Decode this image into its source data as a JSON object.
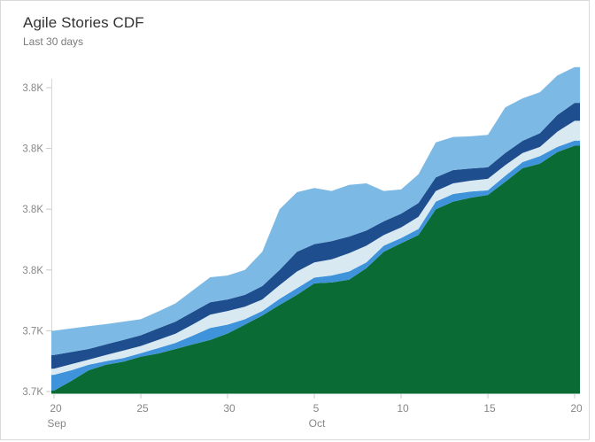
{
  "card": {
    "title": "Agile Stories CDF",
    "subtitle": "Last 30 days"
  },
  "chart_data": {
    "type": "area",
    "stacked": true,
    "title": "Agile Stories CDF",
    "subtitle": "Last 30 days",
    "grid": false,
    "legend_position": "none",
    "ylim": [
      3719,
      3828
    ],
    "xlabel": "",
    "ylabel": "",
    "dates": [
      "Sep 20",
      "Sep 21",
      "Sep 22",
      "Sep 23",
      "Sep 24",
      "Sep 25",
      "Sep 26",
      "Sep 27",
      "Sep 28",
      "Sep 29",
      "Sep 30",
      "Oct 1",
      "Oct 2",
      "Oct 3",
      "Oct 4",
      "Oct 5",
      "Oct 6",
      "Oct 7",
      "Oct 8",
      "Oct 9",
      "Oct 10",
      "Oct 11",
      "Oct 12",
      "Oct 13",
      "Oct 14",
      "Oct 15",
      "Oct 16",
      "Oct 17",
      "Oct 18",
      "Oct 19",
      "Oct 20"
    ],
    "values_are": "cumulative_upper_boundary_of_each_stacked_band_in_stories",
    "bands": [
      {
        "name": "dark-green",
        "color": "#0b6b34",
        "cumulative_top": [
          3720.3,
          3723.5,
          3727.0,
          3728.8,
          3729.8,
          3731.5,
          3732.5,
          3734.0,
          3735.5,
          3737.0,
          3739.1,
          3742.0,
          3745.0,
          3748.5,
          3751.8,
          3755.6,
          3755.9,
          3756.8,
          3760.6,
          3766.0,
          3768.8,
          3771.5,
          3780.0,
          3782.5,
          3783.8,
          3784.7,
          3789.0,
          3793.5,
          3795.0,
          3798.8,
          3800.9
        ]
      },
      {
        "name": "medium-blue",
        "color": "#3e93da",
        "cumulative_top": [
          3725.5,
          3727.0,
          3728.8,
          3730.0,
          3731.0,
          3732.6,
          3734.3,
          3736.0,
          3738.4,
          3740.9,
          3742.0,
          3743.8,
          3746.5,
          3750.5,
          3754.0,
          3757.5,
          3758.2,
          3759.5,
          3762.5,
          3768.0,
          3770.5,
          3773.5,
          3782.5,
          3785.0,
          3785.8,
          3786.2,
          3791.0,
          3795.5,
          3797.5,
          3800.5,
          3802.6
        ]
      },
      {
        "name": "pale-blue",
        "color": "#d8e9f2",
        "cumulative_top": [
          3727.5,
          3729.0,
          3730.5,
          3732.0,
          3733.5,
          3735.0,
          3737.0,
          3739.0,
          3742.1,
          3745.3,
          3746.5,
          3747.9,
          3750.3,
          3755.0,
          3759.5,
          3762.5,
          3763.5,
          3765.5,
          3768.0,
          3771.5,
          3774.0,
          3777.5,
          3786.0,
          3788.5,
          3789.4,
          3790.0,
          3794.5,
          3798.5,
          3800.5,
          3805.5,
          3809.1
        ]
      },
      {
        "name": "dark-navy",
        "color": "#1f4e8e",
        "cumulative_top": [
          3732.0,
          3733.0,
          3734.0,
          3735.5,
          3737.0,
          3738.5,
          3740.8,
          3743.0,
          3746.2,
          3749.4,
          3750.3,
          3751.8,
          3754.7,
          3760.0,
          3766.0,
          3768.5,
          3769.5,
          3771.0,
          3773.0,
          3776.0,
          3778.5,
          3782.0,
          3790.5,
          3792.9,
          3793.4,
          3793.8,
          3798.5,
          3802.5,
          3805.0,
          3811.0,
          3815.0
        ]
      },
      {
        "name": "light-blue",
        "color": "#7db9e5",
        "cumulative_top": [
          3740.0,
          3740.8,
          3741.5,
          3742.2,
          3743.0,
          3743.8,
          3746.3,
          3749.0,
          3753.3,
          3757.6,
          3758.2,
          3760.0,
          3766.0,
          3780.0,
          3785.6,
          3787.0,
          3786.0,
          3788.0,
          3788.5,
          3786.0,
          3786.5,
          3791.5,
          3802.0,
          3803.8,
          3804.0,
          3804.5,
          3813.5,
          3816.5,
          3818.5,
          3824.0,
          3826.8
        ]
      }
    ],
    "y_axis": {
      "ticks": [
        {
          "value": 3720,
          "label": "3.7K"
        },
        {
          "value": 3740,
          "label": "3.7K"
        },
        {
          "value": 3760,
          "label": "3.8K"
        },
        {
          "value": 3780,
          "label": "3.8K"
        },
        {
          "value": 3800,
          "label": "3.8K"
        },
        {
          "value": 3820,
          "label": "3.8K"
        }
      ]
    },
    "x_axis": {
      "ticks": [
        {
          "day": 0,
          "label": "20",
          "month": "Sep"
        },
        {
          "day": 5,
          "label": "25"
        },
        {
          "day": 10,
          "label": "30"
        },
        {
          "day": 15,
          "label": "5",
          "month": "Oct"
        },
        {
          "day": 20,
          "label": "10"
        },
        {
          "day": 25,
          "label": "15"
        },
        {
          "day": 30,
          "label": "20"
        }
      ]
    }
  },
  "ui": {
    "card_border_color": "#d9d9d9",
    "axis_line_color": "#d6d6d6",
    "tick_mark_color": "#c9c9c9",
    "axis_text_color": "#878787"
  }
}
